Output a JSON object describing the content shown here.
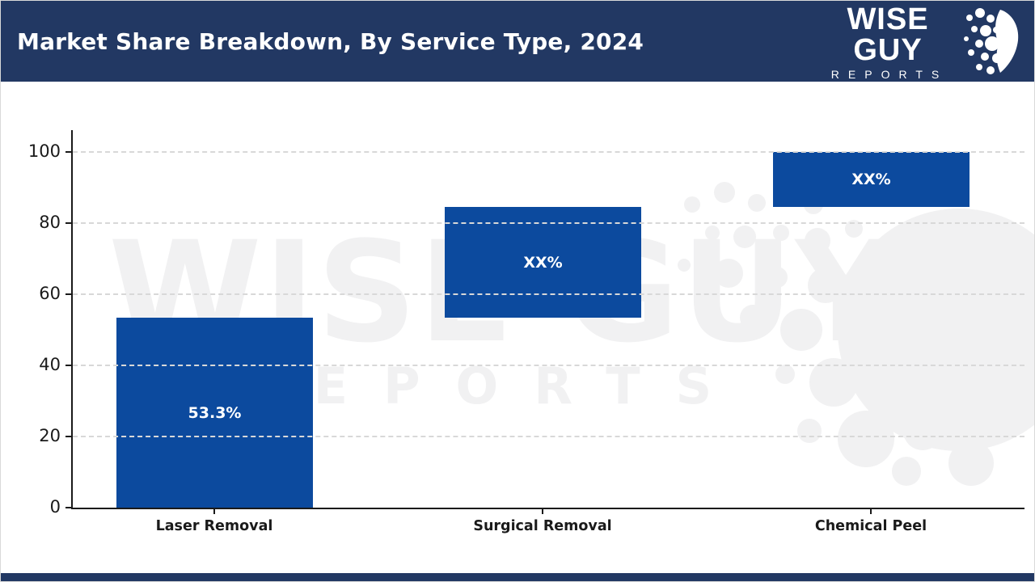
{
  "header": {
    "title": "Market Share Breakdown, By Service Type, 2024",
    "logo": {
      "wordmark": "WISE GUY",
      "subtext": "REPORTS"
    },
    "bg_color": "#223863"
  },
  "watermark": {
    "line1": "WISE GUY",
    "line2": "REPORTS"
  },
  "chart_data": {
    "type": "bar",
    "subtype": "waterfall-stacked-cumulative",
    "title": "Market Share Breakdown, By Service Type, 2024",
    "categories": [
      "Laser Removal",
      "Surgical Removal",
      "Chemical Peel"
    ],
    "series": [
      {
        "name": "Market Share (%)",
        "segments": [
          {
            "category": "Laser Removal",
            "start": 0,
            "end": 53.3,
            "label": "53.3%"
          },
          {
            "category": "Surgical Removal",
            "start": 53.3,
            "end": 84.5,
            "label": "XX%"
          },
          {
            "category": "Chemical Peel",
            "start": 84.5,
            "end": 100,
            "label": "XX%"
          }
        ]
      }
    ],
    "xlabel": "",
    "ylabel": "",
    "ylim": [
      0,
      106
    ],
    "yticks": [
      0,
      20,
      40,
      60,
      80,
      100
    ],
    "grid": "horizontal-dashed",
    "legend": "none",
    "bar_color": "#0c4a9e",
    "bar_label_color": "#ffffff",
    "axis_color": "#1a1a1a",
    "grid_color": "#d8d8d8"
  }
}
